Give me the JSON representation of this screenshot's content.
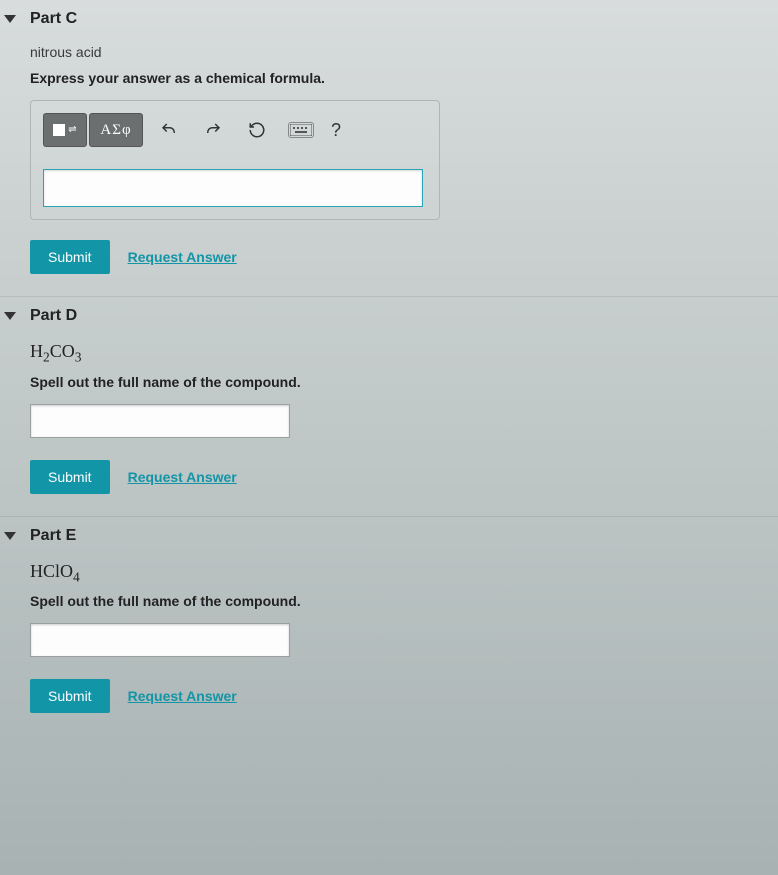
{
  "parts": [
    {
      "title": "Part C",
      "prompt": "nitrous acid",
      "instruction": "Express your answer as a chemical formula.",
      "toolbar": {
        "greek_label": "ΑΣφ",
        "help_label": "?"
      },
      "submit_label": "Submit",
      "request_label": "Request Answer"
    },
    {
      "title": "Part D",
      "formula_html": "H<sub>2</sub>CO<sub>3</sub>",
      "instruction": "Spell out the full name of the compound.",
      "submit_label": "Submit",
      "request_label": "Request Answer"
    },
    {
      "title": "Part E",
      "formula_html": "HClO<sub>4</sub>",
      "instruction": "Spell out the full name of the compound.",
      "submit_label": "Submit",
      "request_label": "Request Answer"
    }
  ],
  "colors": {
    "accent": "#1295a7",
    "toolbar_btn": "#6b6f6f"
  }
}
